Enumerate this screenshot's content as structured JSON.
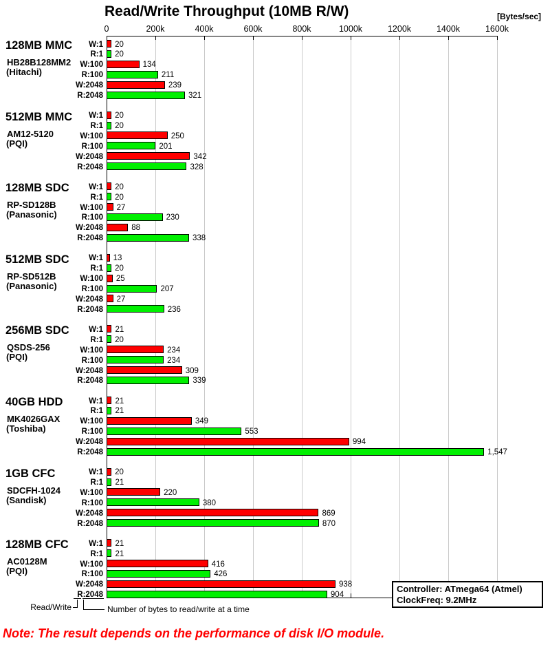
{
  "chart_data": {
    "type": "bar",
    "orientation": "horizontal",
    "title": "Read/Write Throughput (10MB R/W)",
    "unit_label": "[Bytes/sec]",
    "x_axis": {
      "tick_labels": [
        "0",
        "200k",
        "400k",
        "600k",
        "800k",
        "1000k",
        "1200k",
        "1400k",
        "1600k"
      ],
      "min": 0,
      "max_k": 1600,
      "units_per_tick_k": 200,
      "gridlines": true
    },
    "row_labels": [
      "W:1",
      "R:1",
      "W:100",
      "R:100",
      "W:2048",
      "R:2048"
    ],
    "write_color": "#ff0000",
    "read_color": "#00f000",
    "groups": [
      {
        "name": "128MB MMC",
        "model": "HB28B128MM2",
        "maker": "(Hitachi)",
        "values": [
          20,
          20,
          134,
          211,
          239,
          321
        ],
        "value_labels": [
          "20",
          "20",
          "134",
          "211",
          "239",
          "321"
        ]
      },
      {
        "name": "512MB MMC",
        "model": "AM12-5120",
        "maker": "(PQI)",
        "values": [
          20,
          20,
          250,
          201,
          342,
          328
        ],
        "value_labels": [
          "20",
          "20",
          "250",
          "201",
          "342",
          "328"
        ]
      },
      {
        "name": "128MB SDC",
        "model": "RP-SD128B",
        "maker": "(Panasonic)",
        "values": [
          20,
          20,
          27,
          230,
          88,
          338
        ],
        "value_labels": [
          "20",
          "20",
          "27",
          "230",
          "88",
          "338"
        ]
      },
      {
        "name": "512MB SDC",
        "model": "RP-SD512B",
        "maker": "(Panasonic)",
        "values": [
          13,
          20,
          25,
          207,
          27,
          236
        ],
        "value_labels": [
          "13",
          "20",
          "25",
          "207",
          "27",
          "236"
        ]
      },
      {
        "name": "256MB SDC",
        "model": "QSDS-256",
        "maker": "(PQI)",
        "values": [
          21,
          20,
          234,
          234,
          309,
          339
        ],
        "value_labels": [
          "21",
          "20",
          "234",
          "234",
          "309",
          "339"
        ]
      },
      {
        "name": "40GB HDD",
        "model": "MK4026GAX",
        "maker": "(Toshiba)",
        "values": [
          21,
          21,
          349,
          553,
          994,
          1547
        ],
        "value_labels": [
          "21",
          "21",
          "349",
          "553",
          "994",
          "1,547"
        ]
      },
      {
        "name": "1GB CFC",
        "model": "SDCFH-1024",
        "maker": "(Sandisk)",
        "values": [
          20,
          21,
          220,
          380,
          869,
          870
        ],
        "value_labels": [
          "20",
          "21",
          "220",
          "380",
          "869",
          "870"
        ]
      },
      {
        "name": "128MB CFC",
        "model": "AC0128M",
        "maker": "(PQI)",
        "values": [
          21,
          21,
          416,
          426,
          938,
          904
        ],
        "value_labels": [
          "21",
          "21",
          "416",
          "426",
          "938",
          "904"
        ]
      }
    ]
  },
  "legend": {
    "controller": "Controller: ATmega64 (Atmel)",
    "clock": "ClockFreq: 9.2MHz"
  },
  "annotations": {
    "read_write": "Read/Write",
    "bytes_at_a_time": "Number of bytes to read/write at a time"
  },
  "note": "Note: The result depends on the performance of disk I/O module."
}
